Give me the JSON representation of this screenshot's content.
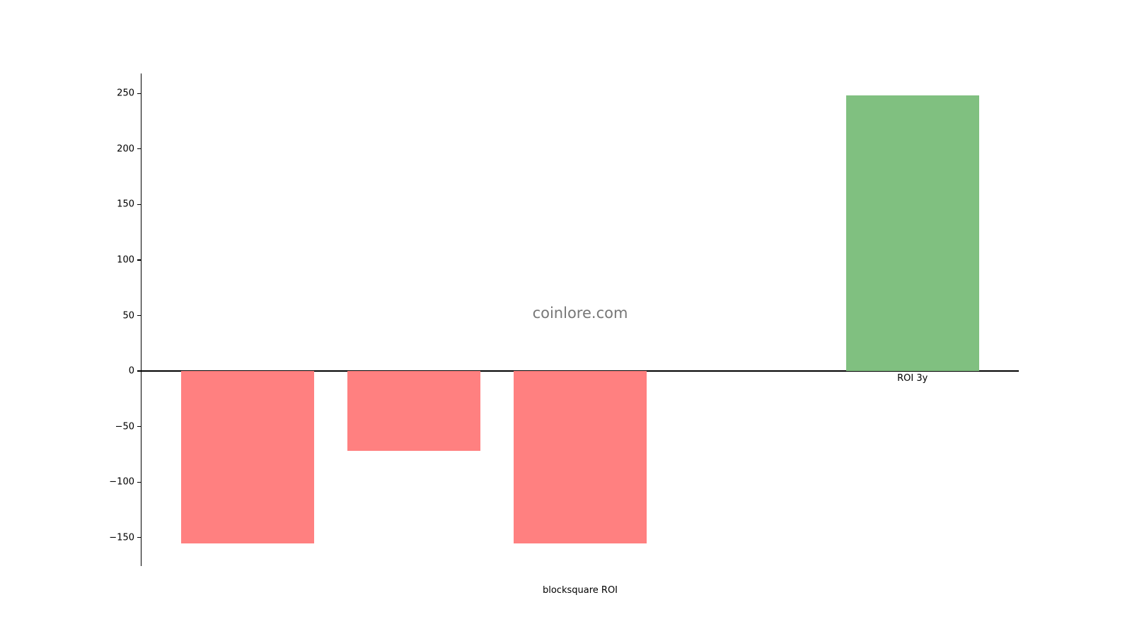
{
  "watermark": {
    "text": "coinlore.com",
    "color": "#777777"
  },
  "axis": {
    "line_color": "#000000",
    "text_color": "#000000"
  },
  "chart_data": {
    "type": "bar",
    "title": "",
    "xlabel": "blocksquare ROI",
    "ylabel": "",
    "categories": [
      "",
      "",
      "",
      "",
      "ROI 3y"
    ],
    "values": [
      -155,
      -72,
      -155,
      null,
      248
    ],
    "series": [
      {
        "name": "blocksquare ROI",
        "values": [
          -155,
          -72,
          -155,
          null,
          248
        ]
      }
    ],
    "yticks": [
      250,
      200,
      150,
      100,
      50,
      0,
      -50,
      -100,
      -150
    ],
    "ylim": [
      -175,
      268
    ],
    "xlim": [
      -0.64,
      4.64
    ],
    "bar_width": 0.8,
    "baseline": 0,
    "grid": false,
    "legend": "none",
    "color_positive": "#80c080",
    "color_negative": "#ff8080",
    "watermark": "coinlore.com"
  }
}
